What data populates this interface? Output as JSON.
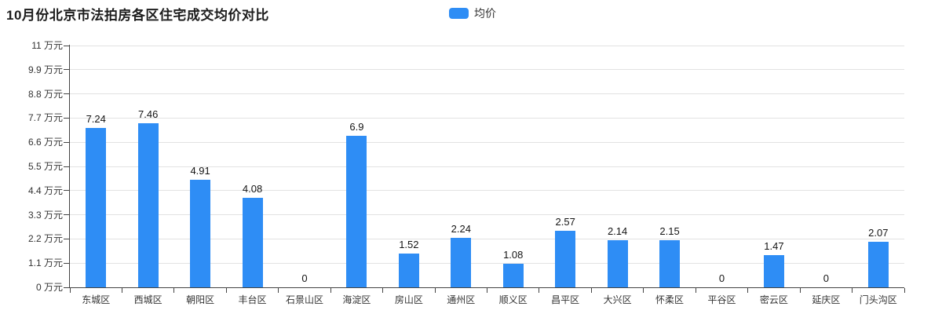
{
  "chart_data": {
    "type": "bar",
    "title": "10月份北京市法拍房各区住宅成交均价对比",
    "categories": [
      "东城区",
      "西城区",
      "朝阳区",
      "丰台区",
      "石景山区",
      "海淀区",
      "房山区",
      "通州区",
      "顺义区",
      "昌平区",
      "大兴区",
      "怀柔区",
      "平谷区",
      "密云区",
      "延庆区",
      "门头沟区"
    ],
    "series": [
      {
        "name": "均价",
        "color": "#2E8DF5",
        "values": [
          7.24,
          7.46,
          4.91,
          4.08,
          0,
          6.9,
          1.52,
          2.24,
          1.08,
          2.57,
          2.14,
          2.15,
          0,
          1.47,
          0,
          2.07
        ]
      }
    ],
    "value_labels_shown": true,
    "ylabel_unit": "万元",
    "ylim": [
      0,
      11
    ],
    "ytick_values": [
      0,
      1.1,
      2.2,
      3.3,
      4.4,
      5.5,
      6.6,
      7.7,
      8.8,
      9.9,
      11
    ],
    "ytick_labels": [
      "0 万元",
      "1.1 万元",
      "2.2 万元",
      "3.3 万元",
      "4.4 万元",
      "5.5 万元",
      "6.6 万元",
      "7.7 万元",
      "8.8 万元",
      "9.9 万元",
      "11 万元"
    ],
    "grid": true,
    "legend_position": "top-center"
  },
  "colors": {
    "bar": "#2E8DF5",
    "grid": "#E2E2E2",
    "axis": "#444444",
    "title_text": "#1D1D1D",
    "axis_label_text": "#333333",
    "value_label_text": "#141414",
    "background": "#FFFFFF"
  }
}
